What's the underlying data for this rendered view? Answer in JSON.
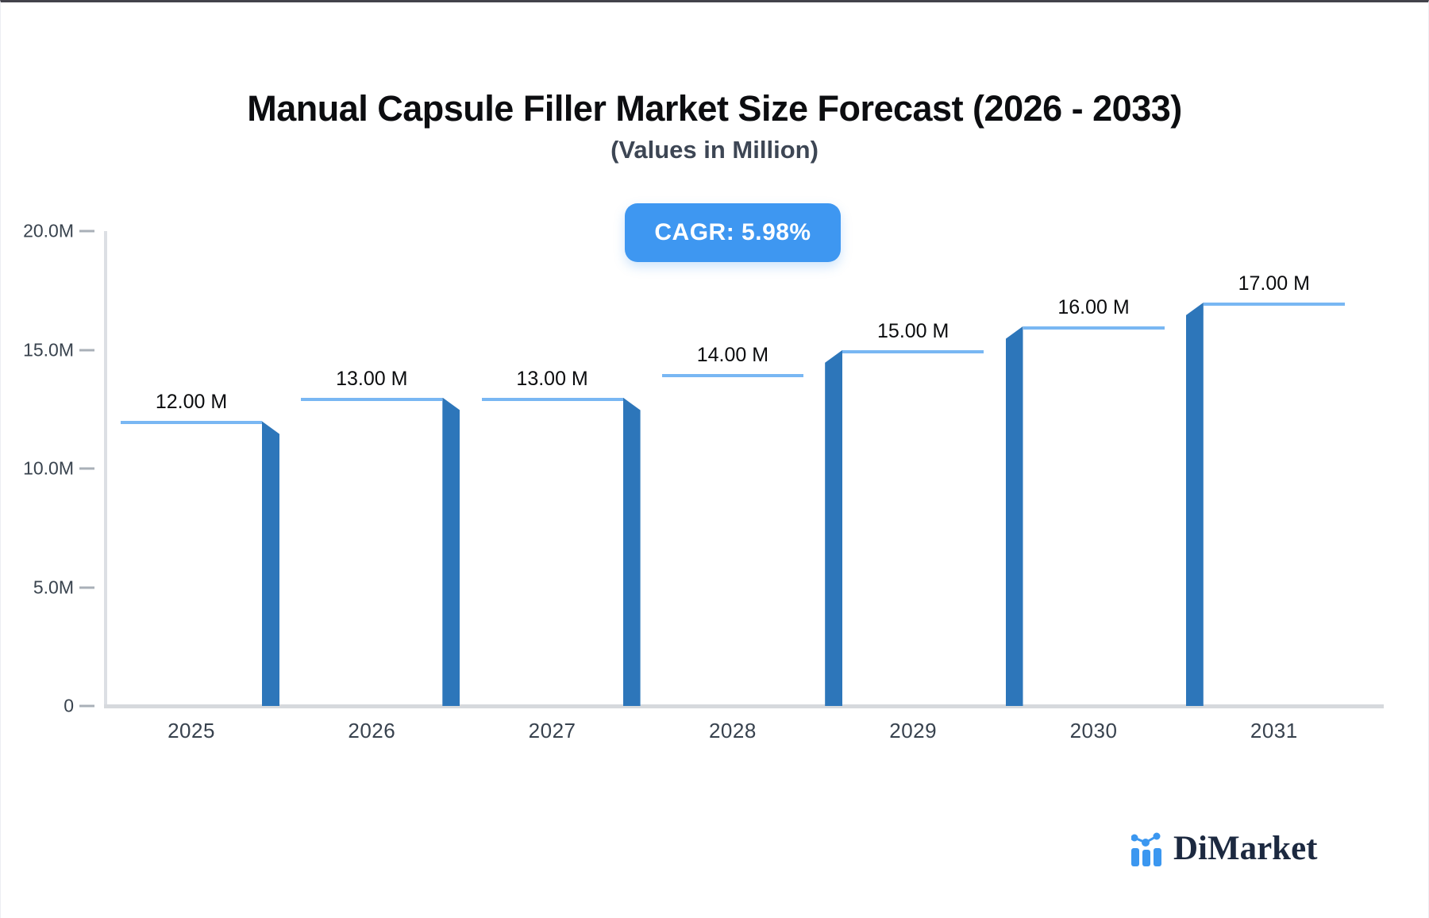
{
  "header": {
    "title": "Manual Capsule Filler Market Size Forecast (2026 - 2033)",
    "subtitle": "(Values in Million)",
    "cagr_badge": {
      "text": "CAGR: 5.98%",
      "background_color": "#3e97f1",
      "text_color": "#ffffff"
    }
  },
  "chart_data": {
    "type": "bar",
    "title": "Manual Capsule Filler Market Size Forecast (2026 - 2033)",
    "subtitle": "(Values in Million)",
    "unit": "Million",
    "cagr": "5.98%",
    "categories": [
      "2025",
      "2026",
      "2027",
      "2028",
      "2029",
      "2030",
      "2031"
    ],
    "values": [
      12,
      13,
      13,
      14,
      15,
      16,
      17
    ],
    "value_labels": [
      "12.00 M",
      "13.00 M",
      "13.00 M",
      "14.00 M",
      "15.00 M",
      "16.00 M",
      "17.00 M"
    ],
    "ylim": [
      0,
      20
    ],
    "y_ticks": [
      {
        "label": "20.0M",
        "value": 20
      },
      {
        "label": "15.0M",
        "value": 15
      },
      {
        "label": "10.0M",
        "value": 10
      },
      {
        "label": "5.0M",
        "value": 5
      },
      {
        "label": "0",
        "value": 0
      }
    ],
    "grid": false,
    "legend": "none",
    "bar_colors": {
      "body_top": "#59a8f0",
      "body_bottom": "#3e95ed",
      "top_highlight": "#79b7f3",
      "side_shade": "#2d76ba"
    },
    "axis_color": "#d6d9dd"
  },
  "footer": {
    "brand": "DiMarket",
    "brand_icon": "bar-chart-logo-icon",
    "brand_color": "#1c2940",
    "icon_color": "#3b97f0"
  }
}
